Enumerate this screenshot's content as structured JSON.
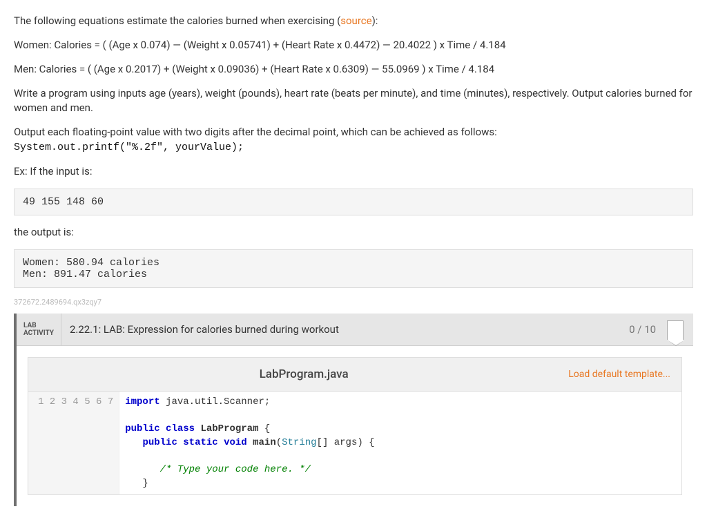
{
  "intro": {
    "line1_pre": "The following equations estimate the calories burned when exercising (",
    "source_text": "source",
    "line1_post": "):",
    "eq_women": "Women: Calories = ( (Age x 0.074) — (Weight x 0.05741) + (Heart Rate x 0.4472) — 20.4022 ) x Time / 4.184",
    "eq_men": "Men: Calories = ( (Age x 0.2017) + (Weight x 0.09036) + (Heart Rate x 0.6309) — 55.0969 ) x Time / 4.184",
    "prompt": "Write a program using inputs age (years), weight (pounds), heart rate (beats per minute), and time (minutes), respectively. Output calories burned for women and men.",
    "fp_instr": "Output each floating-point value with two digits after the decimal point, which can be achieved as follows:",
    "printf_code": "System.out.printf(\"%.2f\", yourValue);",
    "ex_label": "Ex: If the input is:",
    "ex_input": "49 155 148 60",
    "output_label": "the output is:",
    "ex_output": "Women: 580.94 calories\nMen: 891.47 calories",
    "hash": "372672.2489694.qx3zqy7"
  },
  "lab": {
    "badge_line1": "LAB",
    "badge_line2": "ACTIVITY",
    "title": "2.22.1: LAB: Expression for calories burned during workout",
    "score": "0 / 10",
    "filename": "LabProgram.java",
    "load_template": "Load default template...",
    "gutter": "1\n2\n3\n4\n5\n6\n7",
    "code": {
      "l1_a": "import",
      "l1_b": " java.util.Scanner;",
      "l3_a": "public",
      "l3_b": "class",
      "l3_c": "LabProgram",
      "l3_d": " {",
      "l4_a": "public",
      "l4_b": "static",
      "l4_c": "void",
      "l4_d": "main",
      "l4_e": "String",
      "l4_f": "[] args) {",
      "l6": "/* Type your code here. */",
      "l7": "   }"
    }
  },
  "colors": {
    "accent": "#e87722",
    "border_gray": "#ddd",
    "bg_gray": "#f5f5f5"
  }
}
